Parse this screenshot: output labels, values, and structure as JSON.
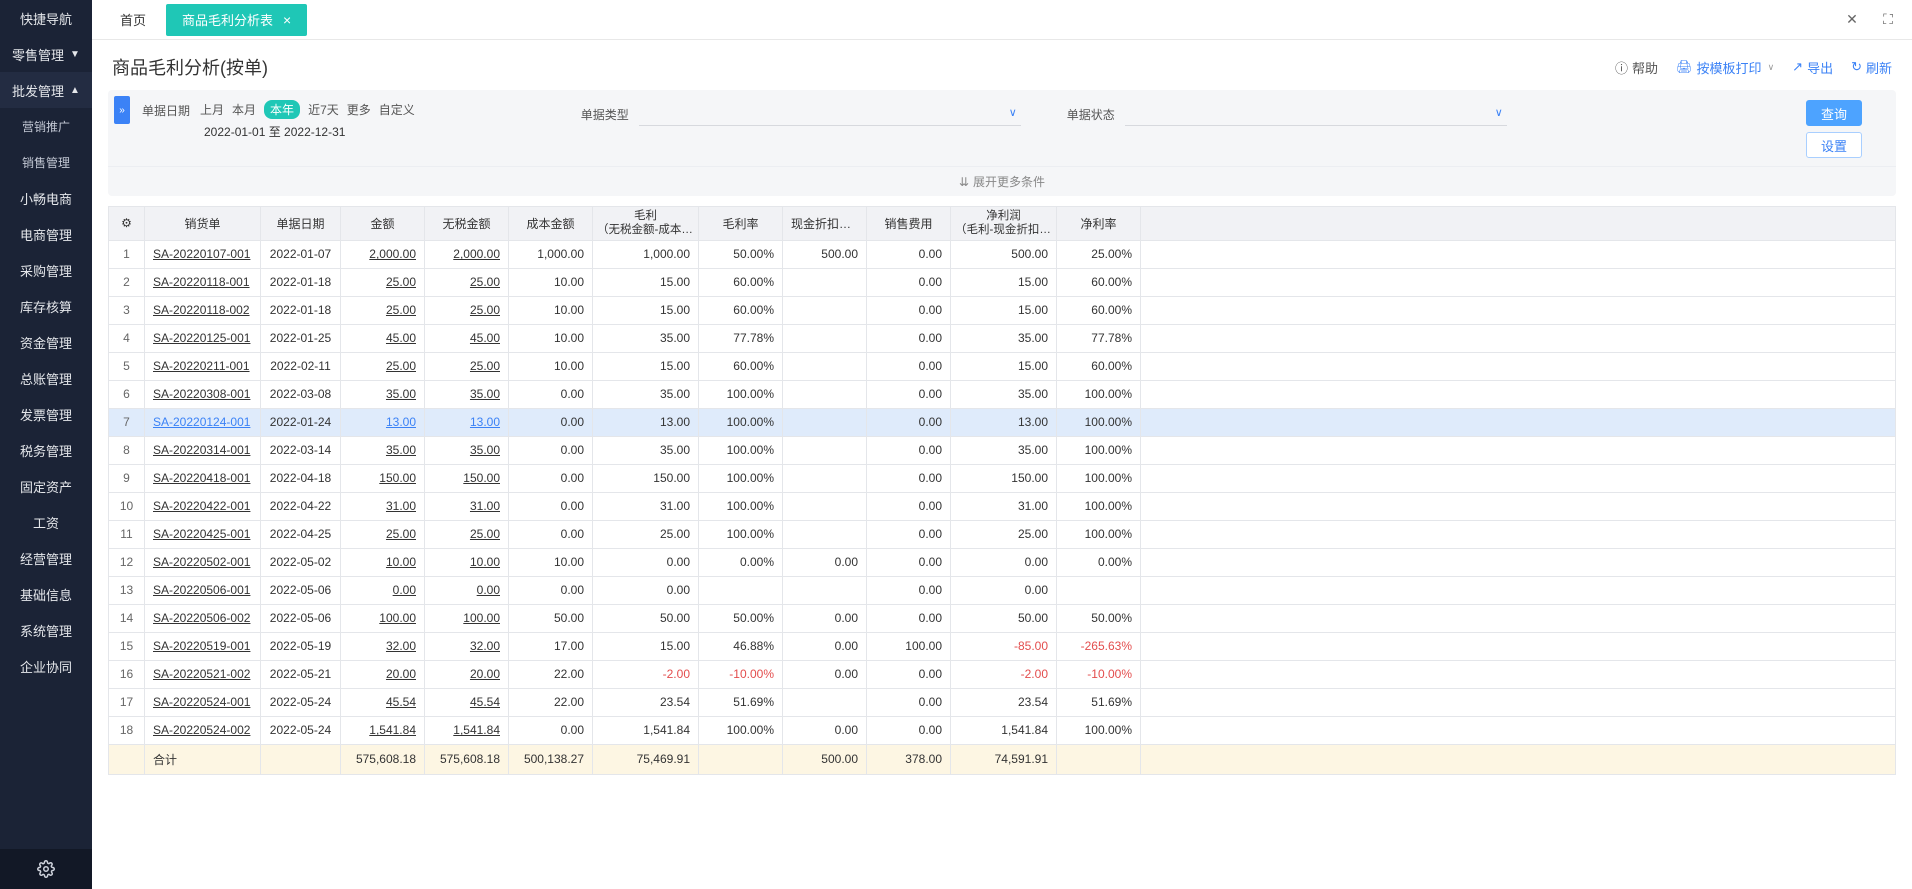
{
  "sidebar": {
    "items": [
      {
        "label": "快捷导航",
        "chevron": ""
      },
      {
        "label": "零售管理",
        "chevron": "▼"
      },
      {
        "label": "批发管理",
        "chevron": "▲",
        "expanded": true
      },
      {
        "label": "营销推广",
        "sub": true
      },
      {
        "label": "销售管理",
        "sub": true
      },
      {
        "label": "小畅电商",
        "chevron": ""
      },
      {
        "label": "电商管理",
        "chevron": ""
      },
      {
        "label": "采购管理",
        "chevron": ""
      },
      {
        "label": "库存核算",
        "chevron": ""
      },
      {
        "label": "资金管理",
        "chevron": ""
      },
      {
        "label": "总账管理",
        "chevron": ""
      },
      {
        "label": "发票管理",
        "chevron": ""
      },
      {
        "label": "税务管理",
        "chevron": ""
      },
      {
        "label": "固定资产",
        "chevron": ""
      },
      {
        "label": "工资",
        "chevron": ""
      },
      {
        "label": "经营管理",
        "chevron": ""
      },
      {
        "label": "基础信息",
        "chevron": ""
      },
      {
        "label": "系统管理",
        "chevron": ""
      },
      {
        "label": "企业协同",
        "chevron": ""
      }
    ]
  },
  "tabs": {
    "home": "首页",
    "active": "商品毛利分析表"
  },
  "page_title": "商品毛利分析(按单)",
  "header_actions": {
    "help": "帮助",
    "print": "按模板打印",
    "export": "导出",
    "refresh": "刷新"
  },
  "filters": {
    "date_label": "单据日期",
    "date_opts": [
      "上月",
      "本月",
      "本年",
      "近7天",
      "更多",
      "自定义"
    ],
    "date_active_idx": 2,
    "date_range": "2022-01-01 至 2022-12-31",
    "type_label": "单据类型",
    "status_label": "单据状态",
    "query": "查询",
    "settings": "设置",
    "expand": "展开更多条件"
  },
  "table": {
    "col_gear": "⚙",
    "columns": [
      "销货单",
      "单据日期",
      "金额",
      "无税金额",
      "成本金额",
      "毛利\n（无税金额-成本金额）",
      "毛利率",
      "现金折扣金额",
      "销售费用",
      "净利润\n（毛利-现金折扣-销售费用）",
      "净利率"
    ],
    "rows": [
      {
        "idx": 1,
        "bill": "SA-20220107-001",
        "date": "2022-01-07",
        "amt": "2,000.00",
        "amt_nt": "2,000.00",
        "cost": "1,000.00",
        "gp": "1,000.00",
        "gpr": "50.00%",
        "disc": "500.00",
        "exp": "0.00",
        "np": "500.00",
        "npr": "25.00%"
      },
      {
        "idx": 2,
        "bill": "SA-20220118-001",
        "date": "2022-01-18",
        "amt": "25.00",
        "amt_nt": "25.00",
        "cost": "10.00",
        "gp": "15.00",
        "gpr": "60.00%",
        "disc": "",
        "exp": "0.00",
        "np": "15.00",
        "npr": "60.00%"
      },
      {
        "idx": 3,
        "bill": "SA-20220118-002",
        "date": "2022-01-18",
        "amt": "25.00",
        "amt_nt": "25.00",
        "cost": "10.00",
        "gp": "15.00",
        "gpr": "60.00%",
        "disc": "",
        "exp": "0.00",
        "np": "15.00",
        "npr": "60.00%"
      },
      {
        "idx": 4,
        "bill": "SA-20220125-001",
        "date": "2022-01-25",
        "amt": "45.00",
        "amt_nt": "45.00",
        "cost": "10.00",
        "gp": "35.00",
        "gpr": "77.78%",
        "disc": "",
        "exp": "0.00",
        "np": "35.00",
        "npr": "77.78%"
      },
      {
        "idx": 5,
        "bill": "SA-20220211-001",
        "date": "2022-02-11",
        "amt": "25.00",
        "amt_nt": "25.00",
        "cost": "10.00",
        "gp": "15.00",
        "gpr": "60.00%",
        "disc": "",
        "exp": "0.00",
        "np": "15.00",
        "npr": "60.00%"
      },
      {
        "idx": 6,
        "bill": "SA-20220308-001",
        "date": "2022-03-08",
        "amt": "35.00",
        "amt_nt": "35.00",
        "cost": "0.00",
        "gp": "35.00",
        "gpr": "100.00%",
        "disc": "",
        "exp": "0.00",
        "np": "35.00",
        "npr": "100.00%"
      },
      {
        "idx": 7,
        "bill": "SA-20220124-001",
        "date": "2022-01-24",
        "amt": "13.00",
        "amt_nt": "13.00",
        "cost": "0.00",
        "gp": "13.00",
        "gpr": "100.00%",
        "disc": "",
        "exp": "0.00",
        "np": "13.00",
        "npr": "100.00%",
        "hl": true
      },
      {
        "idx": 8,
        "bill": "SA-20220314-001",
        "date": "2022-03-14",
        "amt": "35.00",
        "amt_nt": "35.00",
        "cost": "0.00",
        "gp": "35.00",
        "gpr": "100.00%",
        "disc": "",
        "exp": "0.00",
        "np": "35.00",
        "npr": "100.00%"
      },
      {
        "idx": 9,
        "bill": "SA-20220418-001",
        "date": "2022-04-18",
        "amt": "150.00",
        "amt_nt": "150.00",
        "cost": "0.00",
        "gp": "150.00",
        "gpr": "100.00%",
        "disc": "",
        "exp": "0.00",
        "np": "150.00",
        "npr": "100.00%"
      },
      {
        "idx": 10,
        "bill": "SA-20220422-001",
        "date": "2022-04-22",
        "amt": "31.00",
        "amt_nt": "31.00",
        "cost": "0.00",
        "gp": "31.00",
        "gpr": "100.00%",
        "disc": "",
        "exp": "0.00",
        "np": "31.00",
        "npr": "100.00%"
      },
      {
        "idx": 11,
        "bill": "SA-20220425-001",
        "date": "2022-04-25",
        "amt": "25.00",
        "amt_nt": "25.00",
        "cost": "0.00",
        "gp": "25.00",
        "gpr": "100.00%",
        "disc": "",
        "exp": "0.00",
        "np": "25.00",
        "npr": "100.00%"
      },
      {
        "idx": 12,
        "bill": "SA-20220502-001",
        "date": "2022-05-02",
        "amt": "10.00",
        "amt_nt": "10.00",
        "cost": "10.00",
        "gp": "0.00",
        "gpr": "0.00%",
        "disc": "0.00",
        "exp": "0.00",
        "np": "0.00",
        "npr": "0.00%"
      },
      {
        "idx": 13,
        "bill": "SA-20220506-001",
        "date": "2022-05-06",
        "amt": "0.00",
        "amt_nt": "0.00",
        "cost": "0.00",
        "gp": "0.00",
        "gpr": "",
        "disc": "",
        "exp": "0.00",
        "np": "0.00",
        "npr": ""
      },
      {
        "idx": 14,
        "bill": "SA-20220506-002",
        "date": "2022-05-06",
        "amt": "100.00",
        "amt_nt": "100.00",
        "cost": "50.00",
        "gp": "50.00",
        "gpr": "50.00%",
        "disc": "0.00",
        "exp": "0.00",
        "np": "50.00",
        "npr": "50.00%"
      },
      {
        "idx": 15,
        "bill": "SA-20220519-001",
        "date": "2022-05-19",
        "amt": "32.00",
        "amt_nt": "32.00",
        "cost": "17.00",
        "gp": "15.00",
        "gpr": "46.88%",
        "disc": "0.00",
        "exp": "100.00",
        "np": "-85.00",
        "npr": "-265.63%",
        "neg": true
      },
      {
        "idx": 16,
        "bill": "SA-20220521-002",
        "date": "2022-05-21",
        "amt": "20.00",
        "amt_nt": "20.00",
        "cost": "22.00",
        "gp": "-2.00",
        "gpr": "-10.00%",
        "disc": "0.00",
        "exp": "0.00",
        "np": "-2.00",
        "npr": "-10.00%",
        "neg_gp": true,
        "neg": true
      },
      {
        "idx": 17,
        "bill": "SA-20220524-001",
        "date": "2022-05-24",
        "amt": "45.54",
        "amt_nt": "45.54",
        "cost": "22.00",
        "gp": "23.54",
        "gpr": "51.69%",
        "disc": "",
        "exp": "0.00",
        "np": "23.54",
        "npr": "51.69%"
      },
      {
        "idx": 18,
        "bill": "SA-20220524-002",
        "date": "2022-05-24",
        "amt": "1,541.84",
        "amt_nt": "1,541.84",
        "cost": "0.00",
        "gp": "1,541.84",
        "gpr": "100.00%",
        "disc": "0.00",
        "exp": "0.00",
        "np": "1,541.84",
        "npr": "100.00%"
      }
    ],
    "total": {
      "label": "合计",
      "amt": "575,608.18",
      "amt_nt": "575,608.18",
      "cost": "500,138.27",
      "gp": "75,469.91",
      "disc": "500.00",
      "exp": "378.00",
      "np": "74,591.91"
    }
  }
}
